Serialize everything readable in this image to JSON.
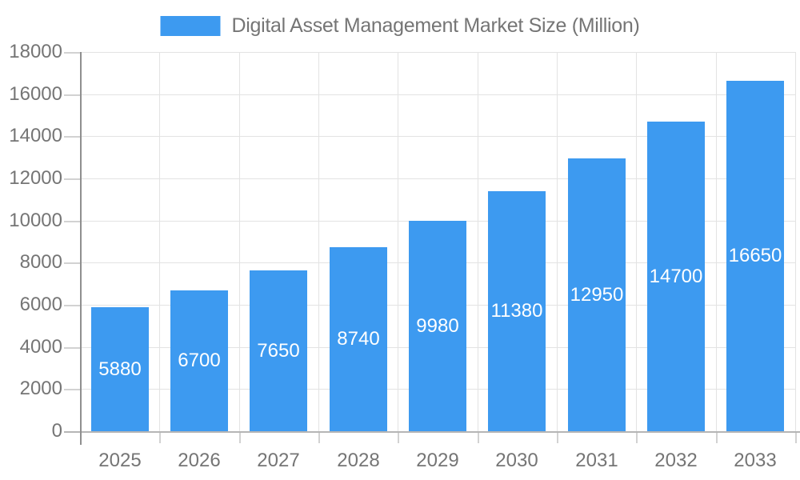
{
  "chart_data": {
    "type": "bar",
    "title": "Digital Asset Management Market Size (Million)",
    "legend": [
      "Digital Asset Management Market Size (Million)"
    ],
    "legend_position": "top",
    "categories": [
      "2025",
      "2026",
      "2027",
      "2028",
      "2029",
      "2030",
      "2031",
      "2032",
      "2033"
    ],
    "values": [
      5880,
      6700,
      7650,
      8740,
      9980,
      11380,
      12950,
      14700,
      16650
    ],
    "bar_value_labels": [
      "5880",
      "6700",
      "7650",
      "8740",
      "9980",
      "11380",
      "12950",
      "14700",
      "16650"
    ],
    "xlabel": "",
    "ylabel": "",
    "ylim": [
      0,
      18000
    ],
    "yticks": [
      0,
      2000,
      4000,
      6000,
      8000,
      10000,
      12000,
      14000,
      16000,
      18000
    ],
    "grid": true
  },
  "colors": {
    "bar": "#3D9AF0",
    "bar_label": "#FFFFFF",
    "axis_text": "#757575",
    "legend_text": "#757575",
    "gridline": "#E3E3E3",
    "tick": "#D2D2D2",
    "y_axis_line": "#8F8F8F",
    "x_axis_line": "#B5B5B5",
    "background": "#FFFFFF"
  }
}
